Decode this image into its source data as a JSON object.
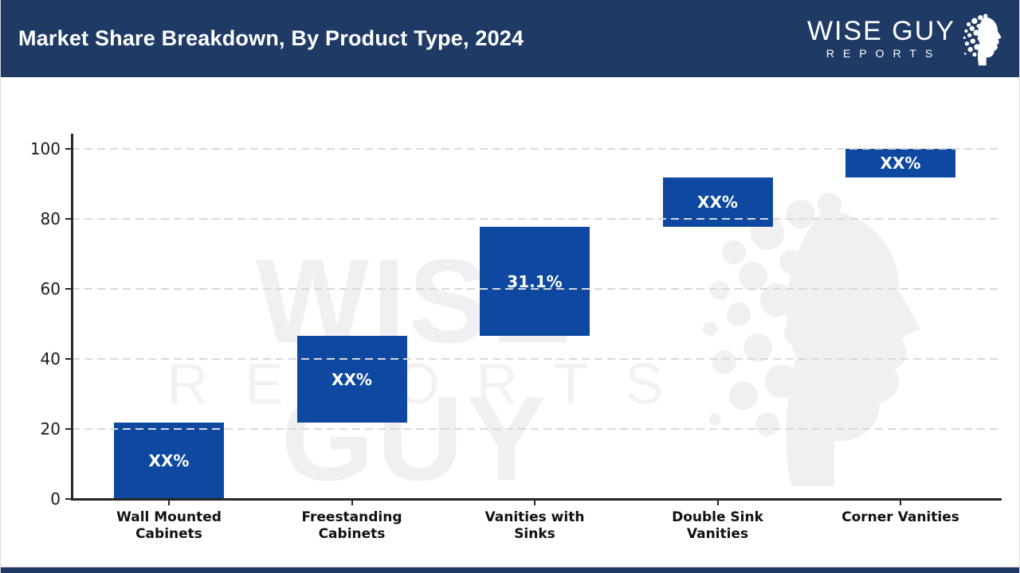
{
  "header": {
    "title": "Market Share Breakdown, By Product Type, 2024",
    "logo": {
      "line1": "WISE GUY",
      "line2": "REPORTS"
    }
  },
  "watermark": {
    "line1": "WISE GUY",
    "line2": "REPORTS"
  },
  "chart_data": {
    "type": "bar",
    "variant": "waterfall",
    "title": "Market Share Breakdown, By Product Type, 2024",
    "categories": [
      "Wall Mounted Cabinets",
      "Freestanding Cabinets",
      "Vanities with Sinks",
      "Double Sink Vanities",
      "Corner Vanities"
    ],
    "segments": [
      {
        "category": "Wall Mounted Cabinets",
        "category_lines": [
          "Wall Mounted",
          "Cabinets"
        ],
        "start": 0,
        "end": 21.8,
        "value_pct": 21.8,
        "value_label": "XX%"
      },
      {
        "category": "Freestanding Cabinets",
        "category_lines": [
          "Freestanding",
          "Cabinets"
        ],
        "start": 21.8,
        "end": 46.5,
        "value_pct": 24.7,
        "value_label": "XX%"
      },
      {
        "category": "Vanities with Sinks",
        "category_lines": [
          "Vanities with",
          "Sinks"
        ],
        "start": 46.5,
        "end": 77.6,
        "value_pct": 31.1,
        "value_label": "31.1%"
      },
      {
        "category": "Double Sink Vanities",
        "category_lines": [
          "Double Sink",
          "Vanities"
        ],
        "start": 77.6,
        "end": 91.8,
        "value_pct": 14.2,
        "value_label": "XX%"
      },
      {
        "category": "Corner Vanities",
        "category_lines": [
          "Corner Vanities"
        ],
        "start": 91.8,
        "end": 100,
        "value_pct": 8.2,
        "value_label": "XX%"
      }
    ],
    "yticks": [
      0,
      20,
      40,
      60,
      80,
      100
    ],
    "ylim": [
      0,
      104
    ],
    "xlabel": "",
    "ylabel": "",
    "legend": "none",
    "grid": "horizontal-dashed-over-bars",
    "colors": {
      "bar": "#0e48a0",
      "header": "#203a66",
      "axis": "#262626",
      "gridline": "#d9d9d9",
      "label_on_bar": "#ffffff",
      "watermark": "#f0f0f2"
    }
  }
}
